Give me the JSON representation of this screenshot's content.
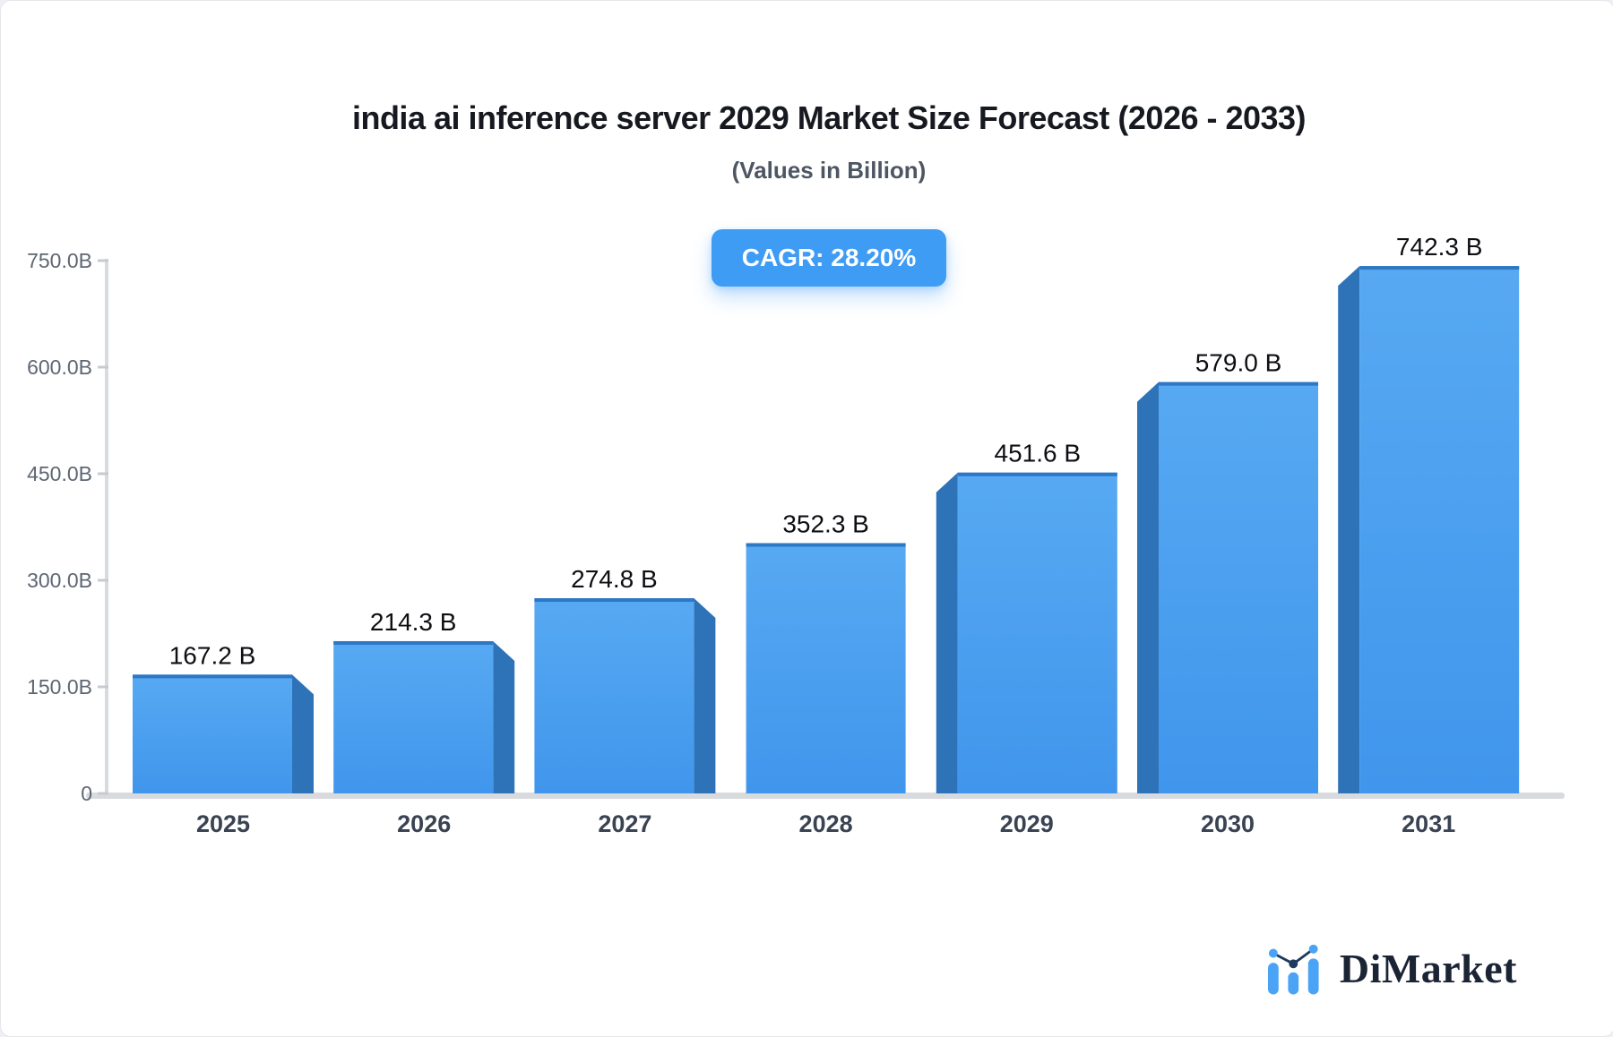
{
  "header": {
    "title": "india ai inference server 2029 Market Size Forecast (2026 - 2033)",
    "subtitle": "(Values in Billion)",
    "cagr_label": "CAGR: 28.20%"
  },
  "chart_data": {
    "type": "bar",
    "title": "india ai inference server 2029 Market Size Forecast (2026 - 2033)",
    "subtitle": "(Values in Billion)",
    "categories": [
      "2025",
      "2026",
      "2027",
      "2028",
      "2029",
      "2030",
      "2031"
    ],
    "values": [
      167.2,
      214.3,
      274.8,
      352.3,
      451.6,
      579.0,
      742.3
    ],
    "value_labels": [
      "167.2 B",
      "214.3 B",
      "274.8 B",
      "352.3 B",
      "451.6 B",
      "579.0 B",
      "742.3 B"
    ],
    "xlabel": "",
    "ylabel": "",
    "ylim": [
      0,
      750
    ],
    "yticks": [
      0,
      150,
      300,
      450,
      600,
      750
    ],
    "ytick_labels": [
      "0",
      "150.0B",
      "300.0B",
      "450.0B",
      "600.0B",
      "750.0B"
    ],
    "grid": false,
    "legend": false,
    "bar_style": "3d-extruded"
  },
  "colors": {
    "bar_face_top": "#57a9f2",
    "bar_face_bottom": "#4096ec",
    "bar_side": "#2e73b7",
    "bar_top_edge": "#2d77c5",
    "axis_line": "#d7dade",
    "baseline": "#d8dade",
    "tick_dash": "#c7cbd1",
    "ytick_text": "#5d6673",
    "xtick_text": "#3a4352",
    "value_text": "#0d0f13",
    "badge_bg": "#3f9cf4",
    "badge_text": "#ffffff"
  },
  "branding": {
    "name": "DiMarket",
    "icon": "bar-chart-logo-icon",
    "icon_blue": "#4aa3f5",
    "icon_dark": "#1e3a5f"
  }
}
